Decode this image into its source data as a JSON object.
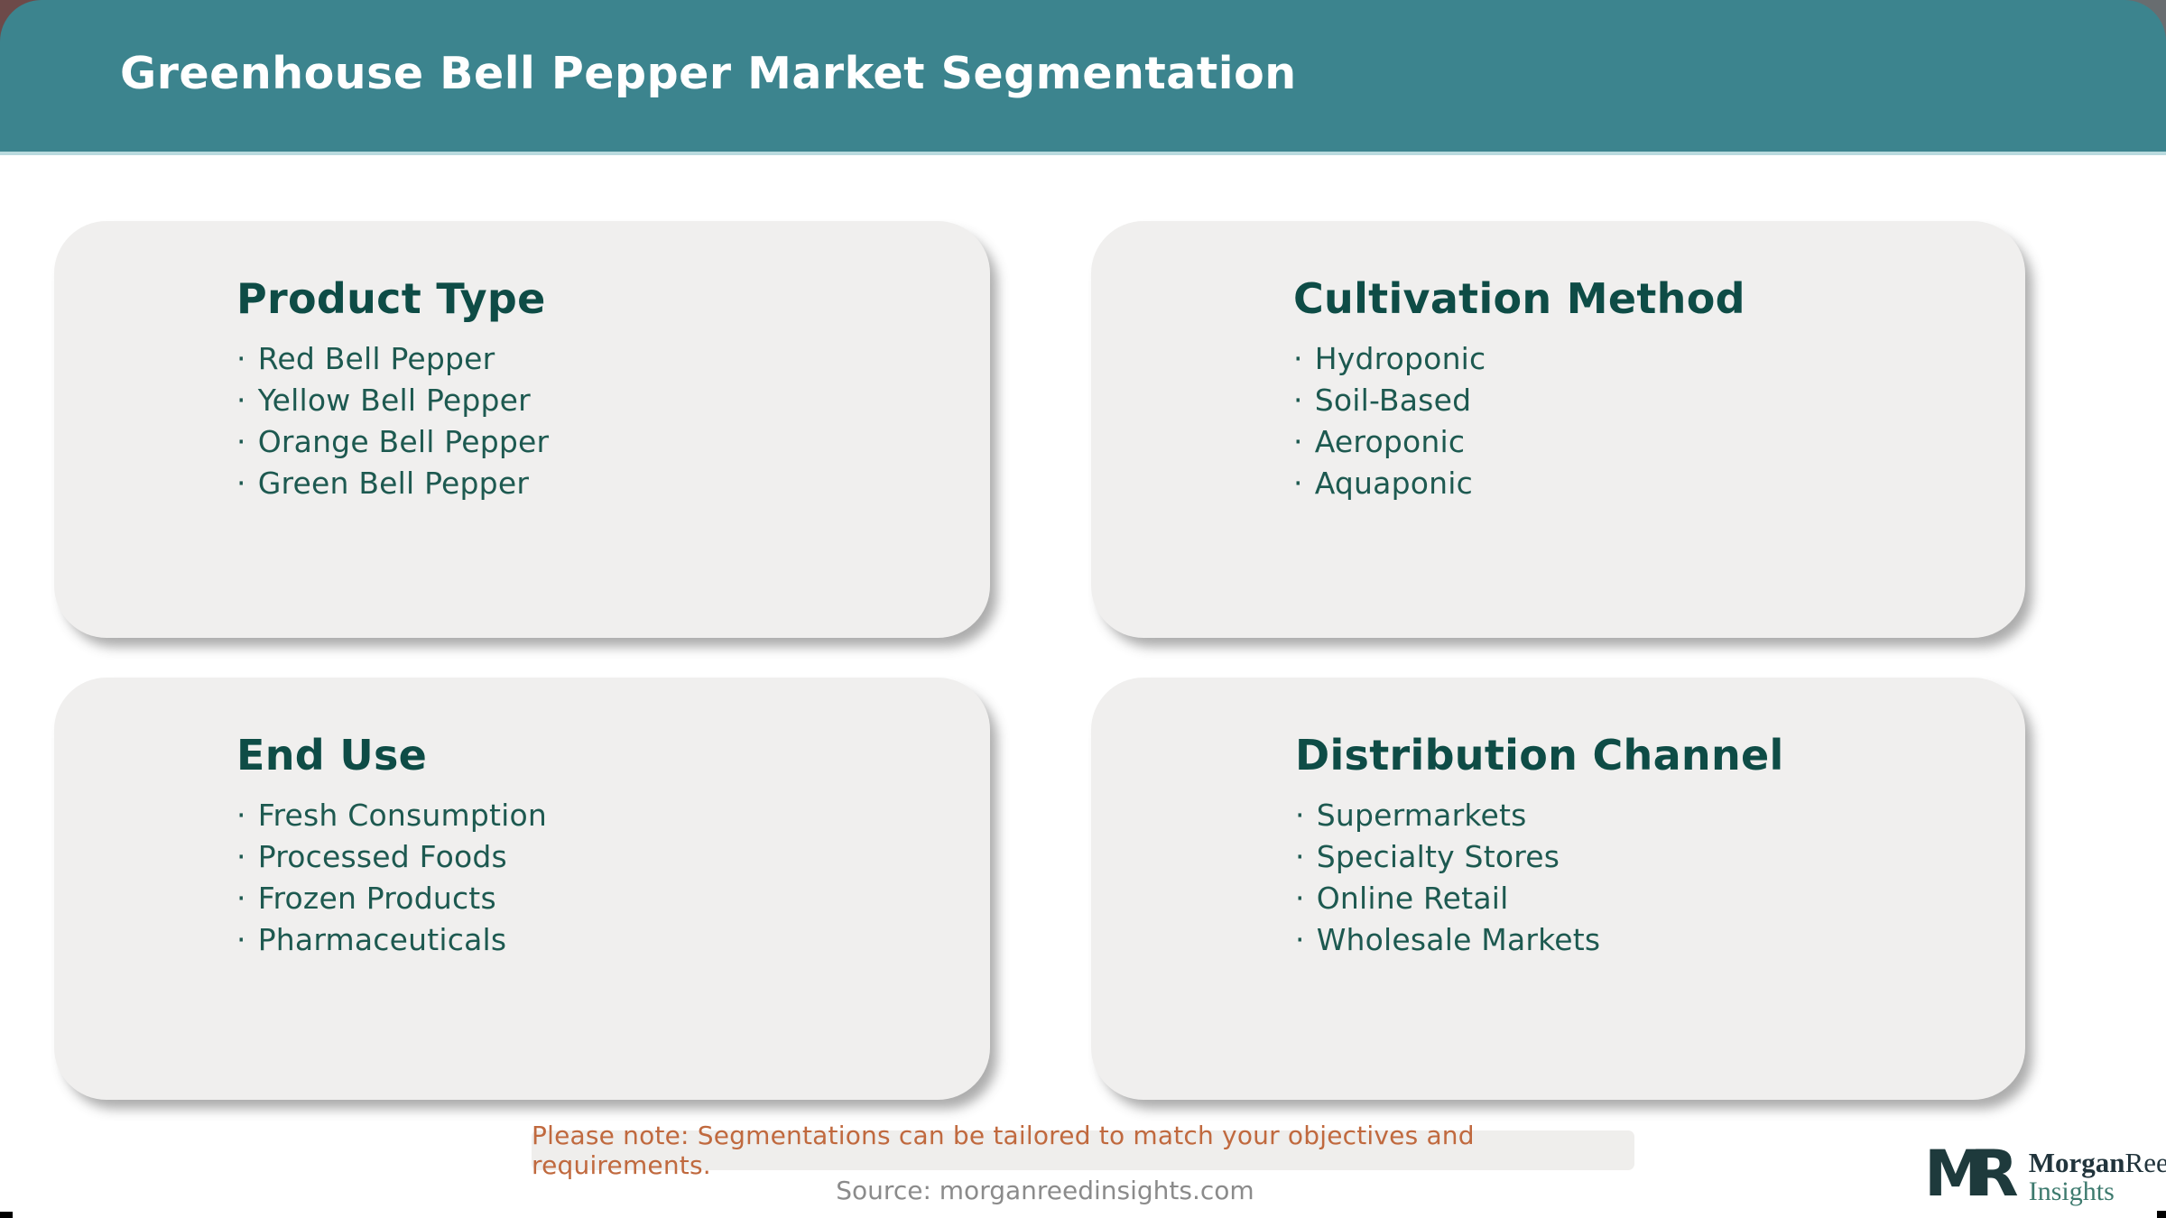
{
  "header": {
    "title": "Greenhouse Bell Pepper Market Segmentation",
    "background_color": "#3c848e",
    "text_color": "#ffffff"
  },
  "bullet_char": "·",
  "cards": [
    {
      "title": "Product Type",
      "items": [
        "Red Bell Pepper",
        "Yellow Bell Pepper",
        "Orange Bell Pepper",
        "Green Bell Pepper"
      ]
    },
    {
      "title": "Cultivation Method",
      "items": [
        "Hydroponic",
        "Soil-Based",
        "Aeroponic",
        "Aquaponic"
      ]
    },
    {
      "title": "End Use",
      "items": [
        "Fresh Consumption",
        "Processed Foods",
        "Frozen Products",
        "Pharmaceuticals"
      ]
    },
    {
      "title": "Distribution Channel",
      "items": [
        "Supermarkets",
        "Specialty Stores",
        "Online Retail",
        "Wholesale Markets"
      ]
    }
  ],
  "card_style": {
    "background_color": "#f0efee",
    "heading_color": "#0e4c46",
    "item_color": "#1d5950"
  },
  "footer": {
    "note": "Please note: Segmentations can be tailored to match your objectives and requirements.",
    "note_color": "#c0693e",
    "source": "Source: morganreedinsights.com"
  },
  "logo": {
    "monogram": "MR",
    "name_primary": "Morgan",
    "name_secondary": "Reed",
    "tagline": "Insights",
    "monogram_color": "#1e3a3c",
    "tagline_color": "#3d7a6e"
  }
}
